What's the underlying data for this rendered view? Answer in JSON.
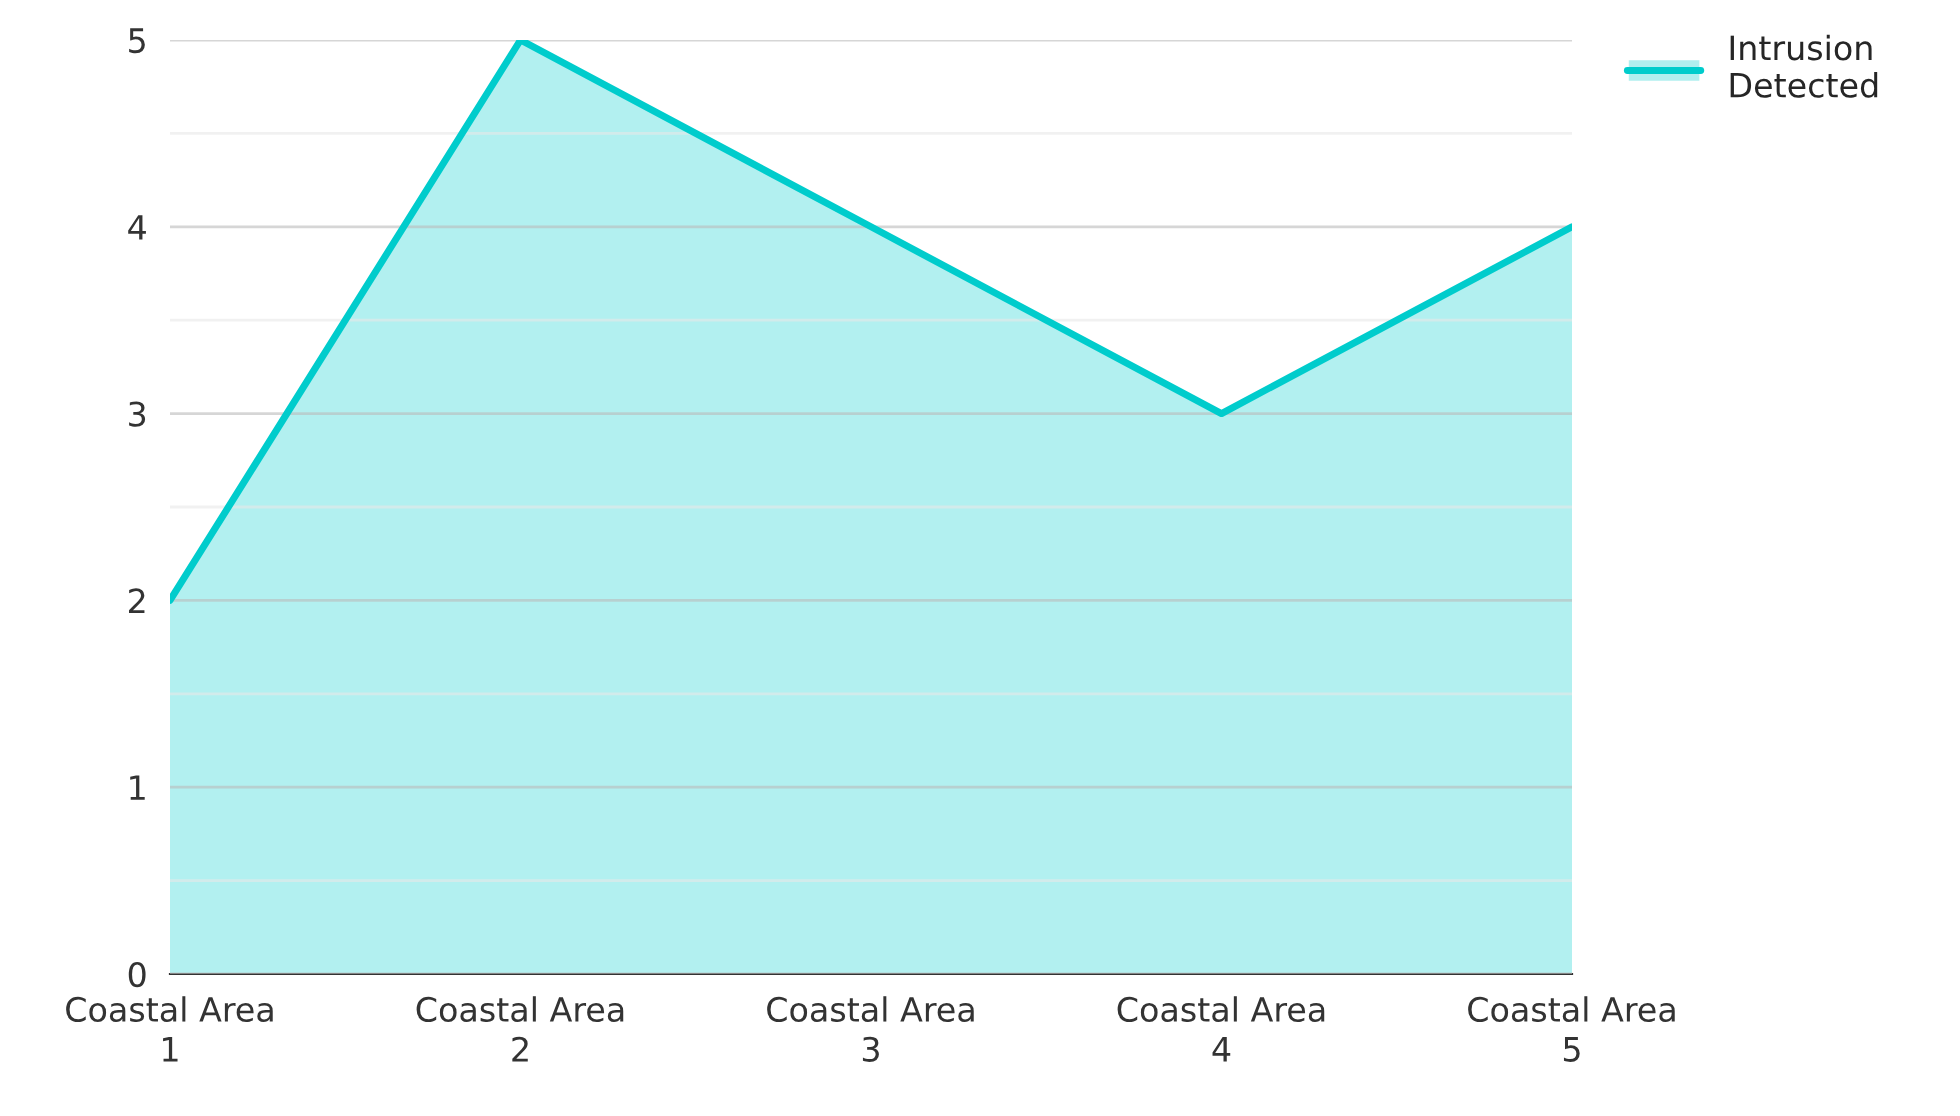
{
  "chart_data": {
    "type": "area",
    "categories": [
      "Coastal Area 1",
      "Coastal Area 2",
      "Coastal Area 3",
      "Coastal Area 4",
      "Coastal Area 5"
    ],
    "series": [
      {
        "name": "Intrusion Detected",
        "color": "#00cccc",
        "values": [
          2,
          5,
          4,
          3,
          4
        ]
      }
    ],
    "ylim": [
      0,
      5
    ],
    "yticks": [
      0,
      {
        "value": 0.5,
        "label": null
      },
      1,
      {
        "value": 1.5,
        "label": null
      },
      2,
      {
        "value": 2.5,
        "label": null
      },
      3,
      {
        "value": 3.5,
        "label": null
      },
      4,
      {
        "value": 4.5,
        "label": null
      },
      5
    ],
    "grid": "y",
    "legend": "top right"
  }
}
